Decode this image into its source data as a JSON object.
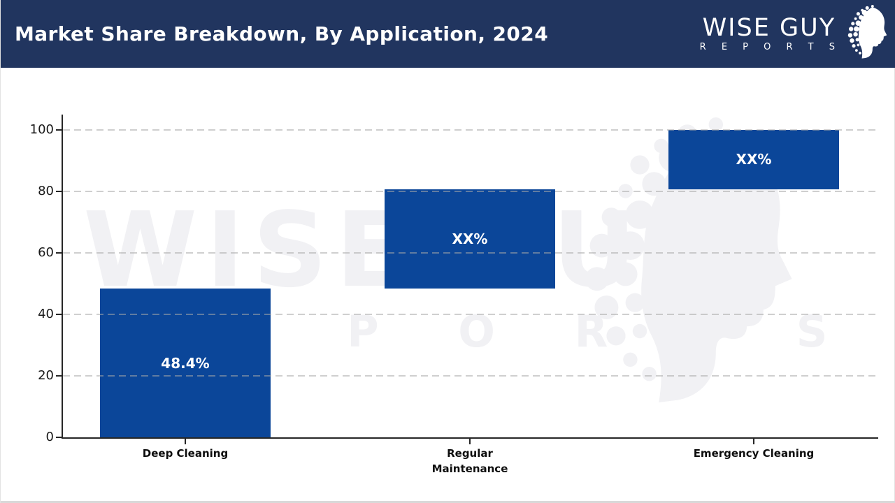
{
  "header": {
    "title": "Market Share Breakdown, By Application, 2024",
    "bg_color": "#21355F",
    "logo": {
      "line1": "WISE GUY",
      "line2": "R E P O R T S"
    }
  },
  "watermark": {
    "line1": "WISE GUY",
    "line2": "R E P O R T S"
  },
  "chart_data": {
    "type": "bar",
    "subtype": "waterfall-stacked-segments",
    "title": "Market Share Breakdown, By Application, 2024",
    "categories": [
      "Deep Cleaning",
      "Regular Maintenance",
      "Emergency Cleaning"
    ],
    "segments": [
      {
        "category": "Deep Cleaning",
        "start": 0,
        "end": 48.4,
        "label": "48.4%"
      },
      {
        "category": "Regular Maintenance",
        "start": 48.4,
        "end": 80.8,
        "label": "XX%"
      },
      {
        "category": "Emergency Cleaning",
        "start": 80.8,
        "end": 100,
        "label": "XX%"
      }
    ],
    "y_ticks": [
      0,
      20,
      40,
      60,
      80,
      100
    ],
    "ylim": [
      0,
      100
    ],
    "xlabel": "",
    "ylabel": "",
    "grid": "horizontal dashed",
    "legend": "none",
    "bar_color": "#0B4699",
    "value_label_color": "#ffffff"
  }
}
